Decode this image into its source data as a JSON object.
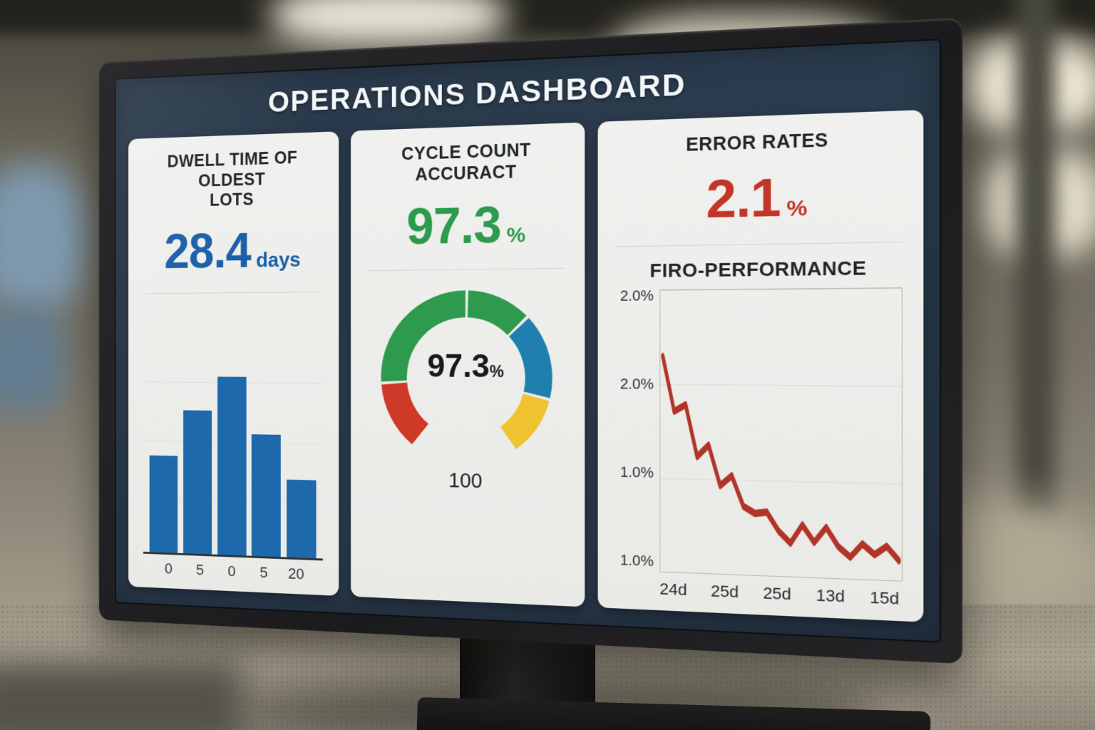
{
  "screen": {
    "title": "OPERATIONS DASHBOARD",
    "colors": {
      "header_bg": "#2b3c4e",
      "card_bg": "#ececea",
      "title_text": "#f3f7f9"
    }
  },
  "cards": {
    "dwell": {
      "title_line1": "DWELL TIME OF OLDEST",
      "title_line2": "LOTS",
      "value": "28.4",
      "unit": "days",
      "value_color": "#1b5fa8"
    },
    "cycle": {
      "title_line1": "CYCLE COUNT",
      "title_line2": "ACCURACT",
      "value": "97.3",
      "unit": "%",
      "value_color": "#2d9a4d",
      "gauge_center_value": "97.3",
      "gauge_center_unit": "%",
      "gauge_max_label": "100"
    },
    "error": {
      "title": "ERROR RATES",
      "value": "2.1",
      "unit": "%",
      "value_color": "#c23527",
      "chart_title": "FIRO-PERFORMANCE"
    }
  },
  "chart_data": [
    {
      "type": "bar",
      "card": "dwell-time-of-oldest-lots",
      "title": "",
      "categories": [
        "0",
        "5",
        "0",
        "5",
        "20"
      ],
      "values": [
        55,
        81,
        100,
        68,
        43
      ],
      "ylim": [
        0,
        100
      ],
      "bar_color": "#1e68ac",
      "grid": true,
      "note": "y-axis unlabeled; values are relative bar heights as % of tallest bar"
    },
    {
      "type": "pie",
      "subtype": "gauge-donut",
      "card": "cycle-count-accuract",
      "value": 97.3,
      "center_label": "97.3%",
      "max_label": "100",
      "angle_convention": "degrees clockwise from 12 o'clock; gap at bottom",
      "segments": [
        {
          "name": "red",
          "from": 218,
          "to": 266,
          "color": "#cf3a28"
        },
        {
          "name": "green-left",
          "from": 266,
          "to": 361,
          "color": "#2d9a4d"
        },
        {
          "name": "green-right",
          "from": 361,
          "to": 406,
          "color": "#2d9a4d"
        },
        {
          "name": "blue",
          "from": 406,
          "to": 464,
          "color": "#1f7fae"
        },
        {
          "name": "yellow",
          "from": 464,
          "to": 505,
          "color": "#efc32f"
        }
      ]
    },
    {
      "type": "line",
      "card": "error-rates",
      "title": "FIRO-PERFORMANCE",
      "x_tick_labels": [
        "24d",
        "25d",
        "25d",
        "13d",
        "15d"
      ],
      "y_tick_labels": [
        "2.0%",
        "2.0%",
        "1.0%",
        "1.0%"
      ],
      "ylim": [
        0.9,
        2.5
      ],
      "line_color": "#b23428",
      "grid": true,
      "legend": "none",
      "points": [
        2.15,
        1.82,
        1.86,
        1.55,
        1.62,
        1.38,
        1.44,
        1.26,
        1.22,
        1.23,
        1.12,
        1.05,
        1.16,
        1.06,
        1.15,
        1.04,
        0.98,
        1.06,
        1.0,
        1.05,
        0.97
      ]
    }
  ]
}
